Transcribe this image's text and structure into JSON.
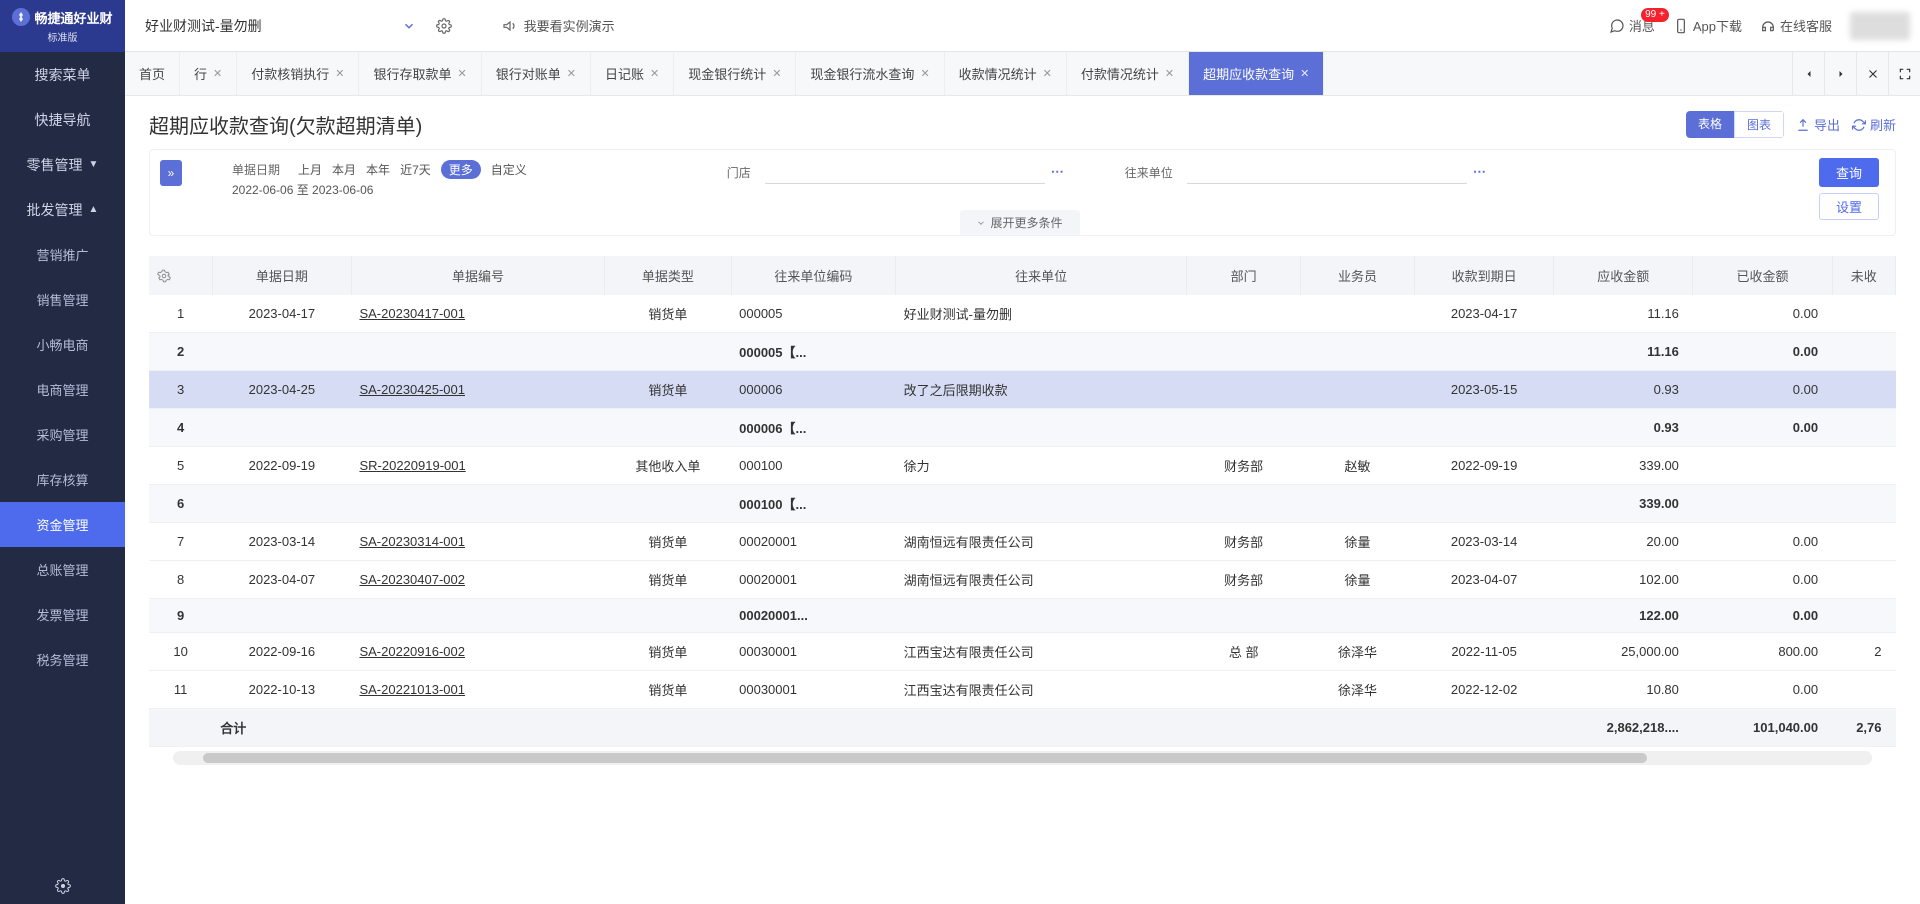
{
  "brand": {
    "name": "畅捷通好业财",
    "edition": "标准版"
  },
  "topbar": {
    "workspace": "好业财测试-量勿删",
    "demo_link": "我要看实例演示",
    "message": "消息",
    "message_badge": "99 +",
    "app_download": "App下载",
    "online_service": "在线客服"
  },
  "sidebar": {
    "items": [
      {
        "label": "搜索菜单",
        "caret": ""
      },
      {
        "label": "快捷导航",
        "caret": ""
      },
      {
        "label": "零售管理",
        "caret": "▼"
      },
      {
        "label": "批发管理",
        "caret": "▲"
      }
    ],
    "sub_items": [
      {
        "label": "营销推广"
      },
      {
        "label": "销售管理"
      },
      {
        "label": "小畅电商"
      },
      {
        "label": "电商管理"
      },
      {
        "label": "采购管理"
      },
      {
        "label": "库存核算"
      },
      {
        "label": "资金管理",
        "active": true
      },
      {
        "label": "总账管理"
      },
      {
        "label": "发票管理"
      },
      {
        "label": "税务管理"
      }
    ]
  },
  "tabs": [
    {
      "label": "首页",
      "closable": false
    },
    {
      "label": "行",
      "closable": true
    },
    {
      "label": "付款核销执行",
      "closable": true
    },
    {
      "label": "银行存取款单",
      "closable": true
    },
    {
      "label": "银行对账单",
      "closable": true
    },
    {
      "label": "日记账",
      "closable": true
    },
    {
      "label": "现金银行统计",
      "closable": true
    },
    {
      "label": "现金银行流水查询",
      "closable": true
    },
    {
      "label": "收款情况统计",
      "closable": true
    },
    {
      "label": "付款情况统计",
      "closable": true
    },
    {
      "label": "超期应收款查询",
      "closable": true,
      "active": true
    }
  ],
  "page": {
    "title": "超期应收款查询(欠款超期清单)",
    "view_table": "表格",
    "view_chart": "图表",
    "export": "导出",
    "refresh": "刷新"
  },
  "filters": {
    "date_label": "单据日期",
    "presets": {
      "last_month": "上月",
      "this_month": "本月",
      "this_year": "本年",
      "seven_days": "近7天",
      "more": "更多",
      "custom": "自定义"
    },
    "date_range": "2022-06-06 至 2023-06-06",
    "store_label": "门店",
    "partner_label": "往来单位",
    "search_btn": "查询",
    "settings_btn": "设置",
    "expand_more": "展开更多条件"
  },
  "table": {
    "columns": {
      "idx": "",
      "date": "单据日期",
      "docno": "单据编号",
      "doctype": "单据类型",
      "partner_code": "往来单位编码",
      "partner": "往来单位",
      "dept": "部门",
      "sales": "业务员",
      "due": "收款到期日",
      "receivable": "应收金额",
      "received": "已收金额",
      "overflow": "未收"
    },
    "rows": [
      {
        "idx": "1",
        "date": "2023-04-17",
        "docno": "SA-20230417-001",
        "doctype": "销货单",
        "pcode": "000005",
        "partner": "好业财测试-量勿删",
        "dept": "",
        "sales": "",
        "due": "2023-04-17",
        "ar": "11.16",
        "rv": "0.00"
      },
      {
        "idx": "2",
        "subtotal": true,
        "pcode": "000005【...",
        "ar": "11.16",
        "rv": "0.00"
      },
      {
        "idx": "3",
        "hl": true,
        "date": "2023-04-25",
        "docno": "SA-20230425-001",
        "doctype": "销货单",
        "pcode": "000006",
        "partner": "改了之后限期收款",
        "dept": "",
        "sales": "",
        "due": "2023-05-15",
        "ar": "0.93",
        "rv": "0.00"
      },
      {
        "idx": "4",
        "subtotal": true,
        "pcode": "000006【...",
        "ar": "0.93",
        "rv": "0.00"
      },
      {
        "idx": "5",
        "date": "2022-09-19",
        "docno": "SR-20220919-001",
        "doctype": "其他收入单",
        "pcode": "000100",
        "partner": "徐力",
        "dept": "财务部",
        "sales": "赵敏",
        "due": "2022-09-19",
        "ar": "339.00",
        "rv": ""
      },
      {
        "idx": "6",
        "subtotal": true,
        "pcode": "000100【...",
        "ar": "339.00",
        "rv": ""
      },
      {
        "idx": "7",
        "date": "2023-03-14",
        "docno": "SA-20230314-001",
        "doctype": "销货单",
        "pcode": "00020001",
        "partner": "湖南恒远有限责任公司",
        "dept": "财务部",
        "sales": "徐量",
        "due": "2023-03-14",
        "ar": "20.00",
        "rv": "0.00"
      },
      {
        "idx": "8",
        "date": "2023-04-07",
        "docno": "SA-20230407-002",
        "doctype": "销货单",
        "pcode": "00020001",
        "partner": "湖南恒远有限责任公司",
        "dept": "财务部",
        "sales": "徐量",
        "due": "2023-04-07",
        "ar": "102.00",
        "rv": "0.00"
      },
      {
        "idx": "9",
        "subtotal": true,
        "pcode": "00020001...",
        "ar": "122.00",
        "rv": "0.00"
      },
      {
        "idx": "10",
        "date": "2022-09-16",
        "docno": "SA-20220916-002",
        "doctype": "销货单",
        "pcode": "00030001",
        "partner": "江西宝达有限责任公司",
        "dept": "总 部",
        "sales": "徐泽华",
        "due": "2022-11-05",
        "ar": "25,000.00",
        "rv": "800.00",
        "ov": "2"
      },
      {
        "idx": "11",
        "date": "2022-10-13",
        "docno": "SA-20221013-001",
        "doctype": "销货单",
        "pcode": "00030001",
        "partner": "江西宝达有限责任公司",
        "dept": "",
        "sales": "徐泽华",
        "due": "2022-12-02",
        "ar": "10.80",
        "rv": "0.00"
      }
    ],
    "footer": {
      "label": "合计",
      "ar": "2,862,218....",
      "rv": "101,040.00",
      "ov": "2,76"
    }
  }
}
